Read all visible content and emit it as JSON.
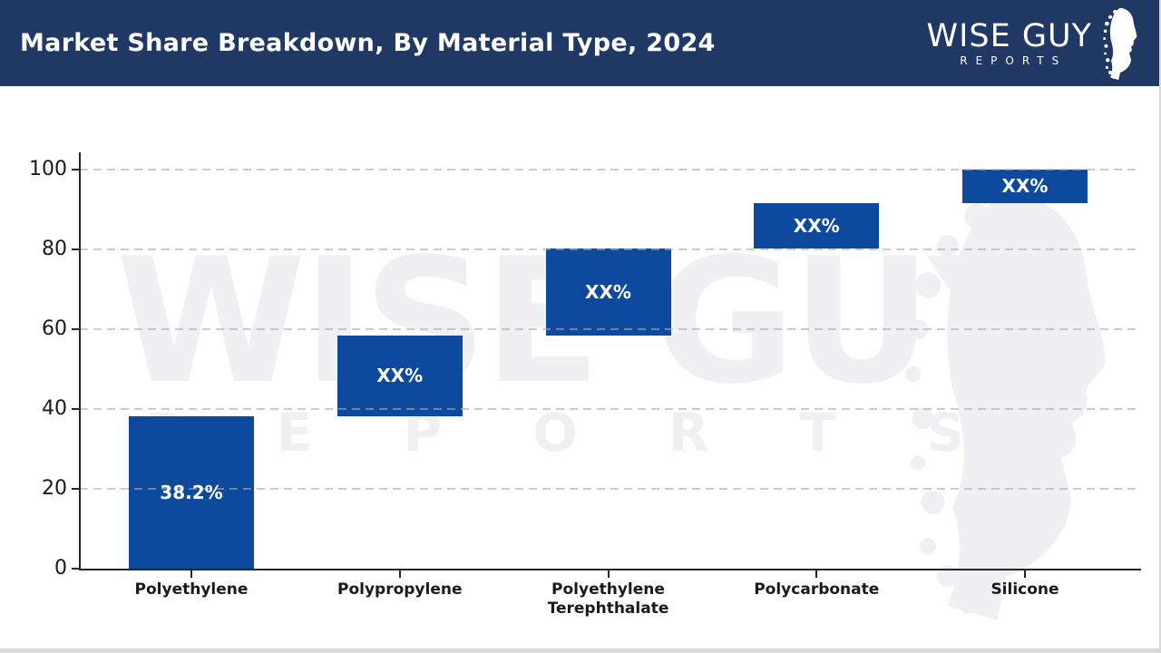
{
  "header": {
    "title": "Market Share Breakdown, By Material Type, 2024",
    "bg_color": "#203864",
    "logo_line1": "WISE GUY",
    "logo_line2": "REPORTS"
  },
  "watermark": {
    "line1": "WISE GUY",
    "line2": "R E P O R T S"
  },
  "chart_data": {
    "type": "bar",
    "subtype": "waterfall",
    "title": "Market Share Breakdown, By Material Type, 2024",
    "categories": [
      "Polyethylene",
      "Polypropylene",
      "Polyethylene\nTerephthalate",
      "Polycarbonate",
      "Silicone"
    ],
    "bars": [
      {
        "category": "Polyethylene",
        "start": 0,
        "end": 38.2,
        "value": 38.2,
        "label": "38.2%"
      },
      {
        "category": "Polypropylene",
        "start": 38.2,
        "end": 58.4,
        "value": 20.2,
        "label": "XX%"
      },
      {
        "category": "Polyethylene Terephthalate",
        "start": 58.4,
        "end": 80.2,
        "value": 21.8,
        "label": "XX%"
      },
      {
        "category": "Polycarbonate",
        "start": 80.2,
        "end": 91.6,
        "value": 11.4,
        "label": "XX%"
      },
      {
        "category": "Silicone",
        "start": 91.6,
        "end": 100,
        "value": 8.4,
        "label": "XX%"
      }
    ],
    "y_ticks": [
      0,
      20,
      40,
      60,
      80,
      100
    ],
    "ylim": [
      0,
      105
    ],
    "xlabel": "",
    "ylabel": "",
    "grid": "horizontal-dashed",
    "legend": "none",
    "bar_color": "#0d4a9e",
    "label_color": "#ffffff"
  }
}
